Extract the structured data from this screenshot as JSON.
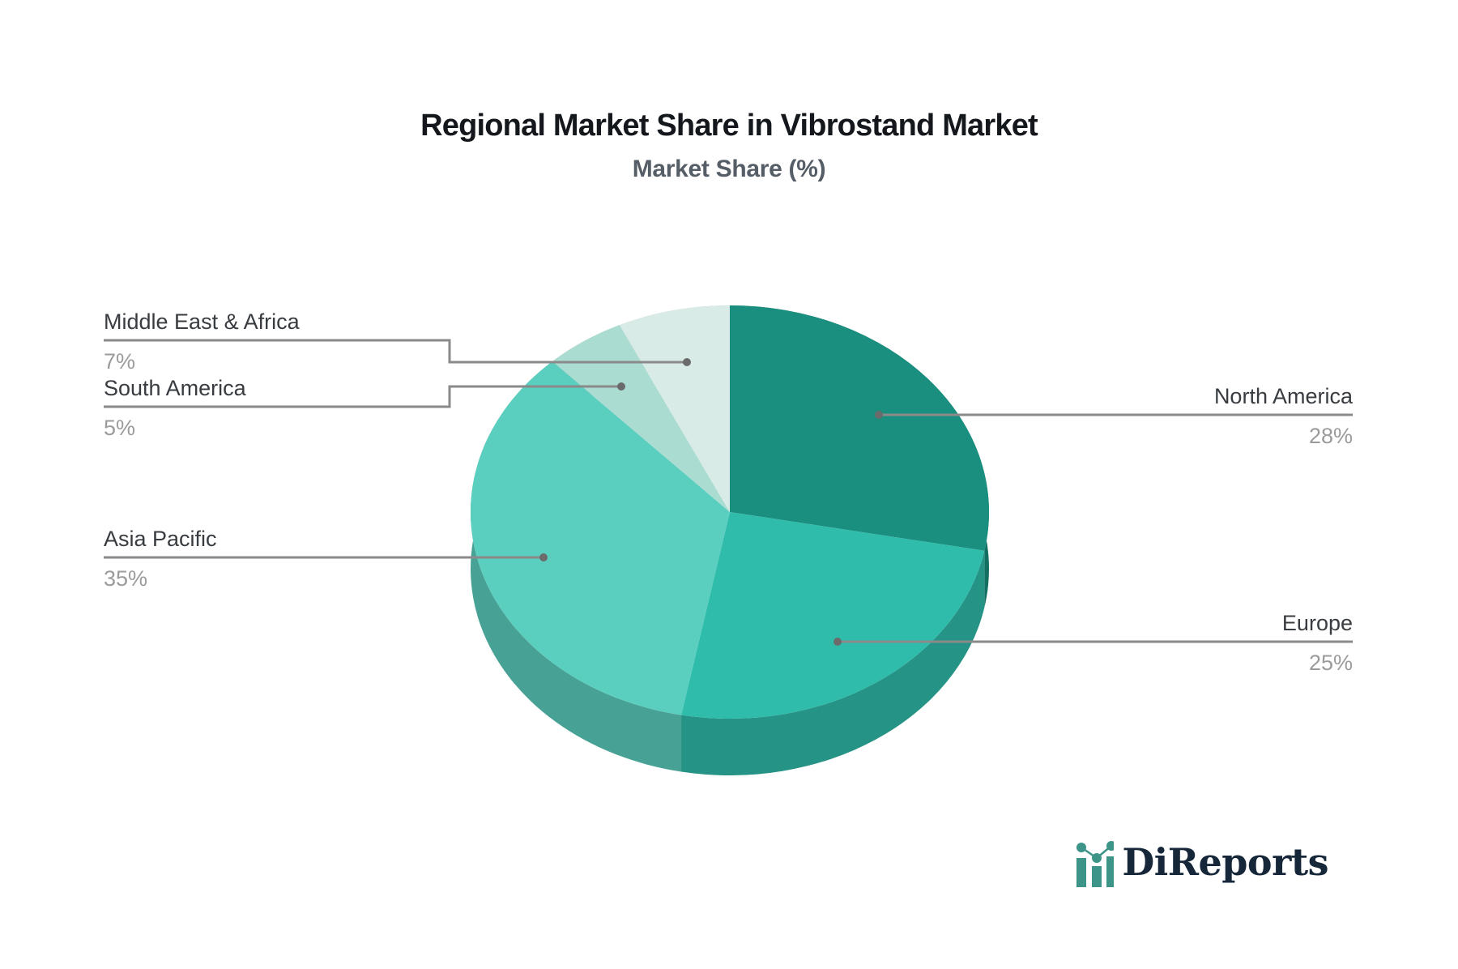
{
  "title": "Regional Market Share in Vibrostand Market",
  "subtitle": "Market Share (%)",
  "chart_data": {
    "type": "pie",
    "style": "3d",
    "title": "Regional Market Share in Vibrostand Market",
    "subtitle": "Market Share (%)",
    "unit": "%",
    "start_angle_deg": 0,
    "direction": "clockwise",
    "legend_position": "none",
    "labels": [
      "North America",
      "Europe",
      "Asia Pacific",
      "South America",
      "Middle East & Africa"
    ],
    "values": [
      28,
      25,
      35,
      5,
      7
    ],
    "display_values": [
      "28%",
      "25%",
      "35%",
      "5%",
      "7%"
    ],
    "colors": [
      "#1a8e7f",
      "#2fbcab",
      "#5bcfbf",
      "#abdcd1",
      "#d9ebe6"
    ],
    "leader_line_color": "#8a8a8a",
    "leader_dot_color": "#6b6b6b",
    "label_text_color": "#383c40",
    "value_text_color": "#9b9b9b"
  },
  "logo": {
    "text": "DiReports",
    "accent_color": "#3d958a",
    "text_color": "#16273a"
  }
}
